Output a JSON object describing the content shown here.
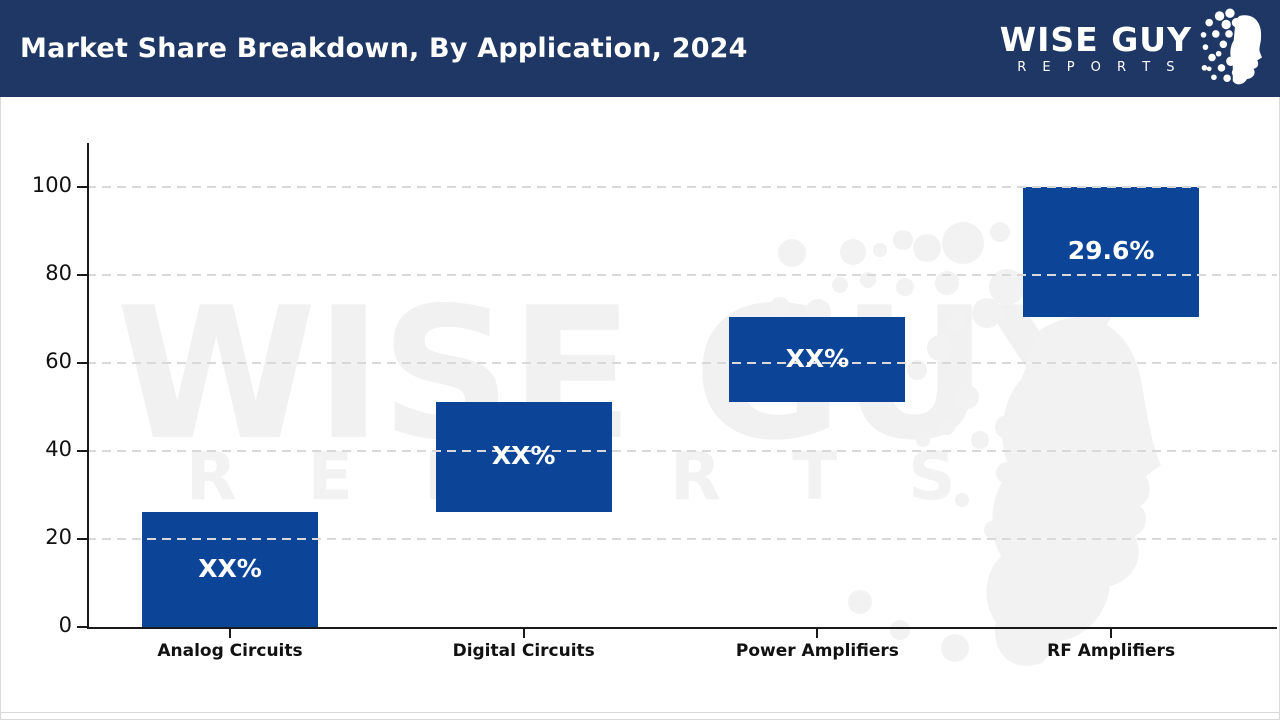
{
  "header": {
    "title": "Market Share Breakdown, By Application, 2024",
    "logo": {
      "name": "WISE GUY",
      "subtitle": "R E P O R T S"
    }
  },
  "watermark": {
    "line1": "WISE GUY",
    "line2": "R E P O R T S"
  },
  "colors": {
    "header_bg": "#1f3764",
    "bar": "#0c4597",
    "bar_label": "#ffffff",
    "gridline": "#d9d9d9",
    "axis": "#1a1a1a",
    "watermark": "#f1f1f1"
  },
  "chart_data": {
    "type": "bar",
    "subtype": "waterfall",
    "title": "Market Share Breakdown, By Application, 2024",
    "xlabel": "",
    "ylabel": "",
    "ylim": [
      0,
      110
    ],
    "y_ticks": [
      0,
      20,
      40,
      60,
      80,
      100
    ],
    "grid": "dashed horizontal, drawn over bars",
    "legend": "none",
    "bar_color": "#0c4597",
    "bar_label_color": "#ffffff",
    "categories": [
      "Analog Circuits",
      "Digital Circuits",
      "Power Amplifiers",
      "RF Amplifiers"
    ],
    "segments": [
      {
        "category": "Analog Circuits",
        "start": 0,
        "end": 26.1,
        "span": 26.1,
        "label": "XX%"
      },
      {
        "category": "Digital Circuits",
        "start": 26.1,
        "end": 51.1,
        "span": 25.0,
        "label": "XX%"
      },
      {
        "category": "Power Amplifiers",
        "start": 51.1,
        "end": 70.4,
        "span": 19.3,
        "label": "XX%"
      },
      {
        "category": "RF Amplifiers",
        "start": 70.4,
        "end": 100,
        "span": 29.6,
        "label": "29.6%"
      }
    ]
  }
}
